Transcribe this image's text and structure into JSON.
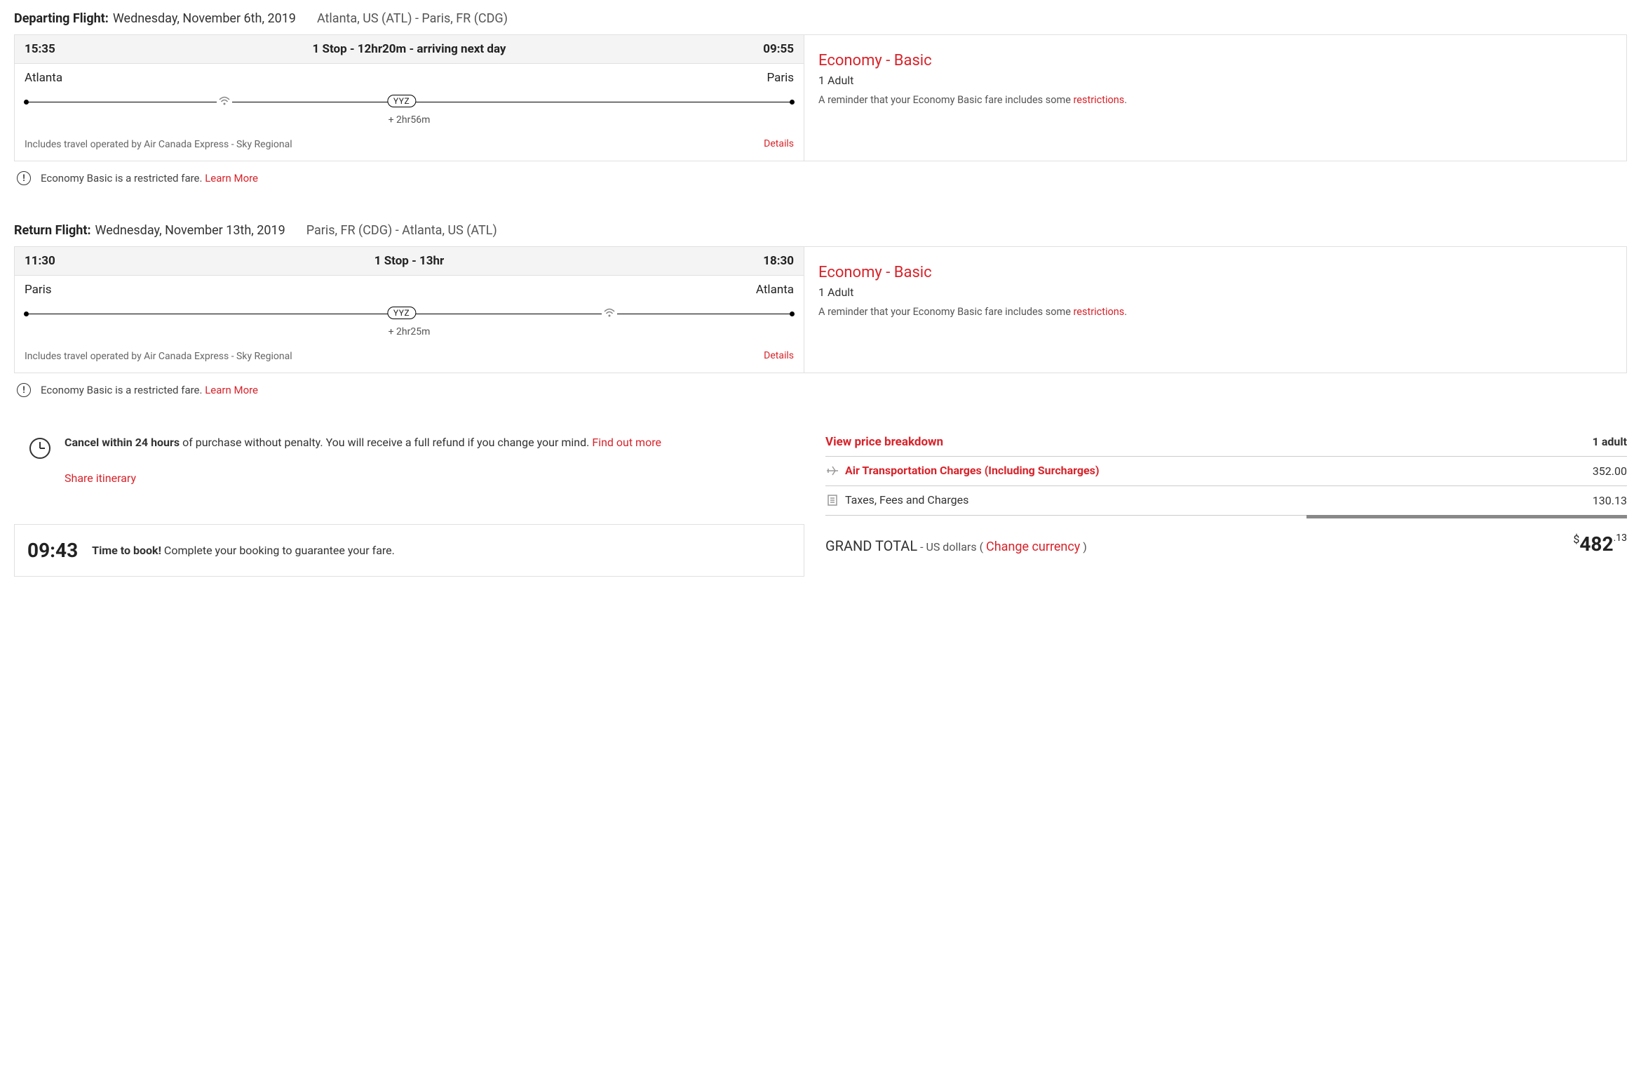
{
  "colors": {
    "accent": "#d8232a",
    "text": "#333333",
    "muted": "#666666",
    "border": "#e0e0e0",
    "header_bg": "#f4f4f4"
  },
  "departing": {
    "label": "Departing Flight:",
    "date": "Wednesday, November 6th, 2019",
    "route": "Atlanta, US (ATL) - Paris, FR (CDG)",
    "dep_time": "15:35",
    "arr_time": "09:55",
    "stop_summary": "1 Stop - 12hr20m - arriving next day",
    "from_city": "Atlanta",
    "to_city": "Paris",
    "stop_code": "YYZ",
    "stop_position_pct": 49,
    "wifi_positions_pct": [
      26
    ],
    "layover": "+ 2hr56m",
    "operated_by": "Includes travel operated by Air Canada Express - Sky Regional",
    "details": "Details",
    "fare_name": "Economy - Basic",
    "pax": "1 Adult",
    "note_prefix": "A reminder that your Economy Basic fare includes some ",
    "note_link": "restrictions",
    "note_suffix": ".",
    "warn_text": "Economy Basic is a restricted fare. ",
    "warn_link": "Learn More"
  },
  "return": {
    "label": "Return Flight:",
    "date": "Wednesday, November 13th, 2019",
    "route": "Paris, FR (CDG) - Atlanta, US (ATL)",
    "dep_time": "11:30",
    "arr_time": "18:30",
    "stop_summary": "1 Stop - 13hr",
    "from_city": "Paris",
    "to_city": "Atlanta",
    "stop_code": "YYZ",
    "stop_position_pct": 49,
    "wifi_positions_pct": [
      76
    ],
    "layover": "+ 2hr25m",
    "operated_by": "Includes travel operated by Air Canada Express - Sky Regional",
    "details": "Details",
    "fare_name": "Economy - Basic",
    "pax": "1 Adult",
    "note_prefix": "A reminder that your Economy Basic fare includes some ",
    "note_link": "restrictions",
    "note_suffix": ".",
    "warn_text": "Economy Basic is a restricted fare. ",
    "warn_link": "Learn More"
  },
  "cancel": {
    "bold": "Cancel within 24 hours",
    "rest": " of purchase without penalty. You will receive a full refund if you change your mind. ",
    "find": "Find out more"
  },
  "share": "Share itinerary",
  "timer": {
    "time": "09:43",
    "bold": "Time to book!",
    "rest": " Complete your booking to guarantee your fare."
  },
  "pricing": {
    "view_breakdown": "View price breakdown",
    "adults": "1 adult",
    "lines": [
      {
        "label": "Air Transportation Charges (Including Surcharges)",
        "amount": "352.00",
        "red": true,
        "icon": "plane"
      },
      {
        "label": "Taxes, Fees and Charges",
        "amount": "130.13",
        "red": false,
        "icon": "receipt"
      }
    ],
    "grand_label": "GRAND TOTAL",
    "currency_text": " - US dollars ( ",
    "change": "Change currency",
    "currency_close": " )",
    "symbol": "$",
    "whole": "482",
    "cents": ".13"
  }
}
